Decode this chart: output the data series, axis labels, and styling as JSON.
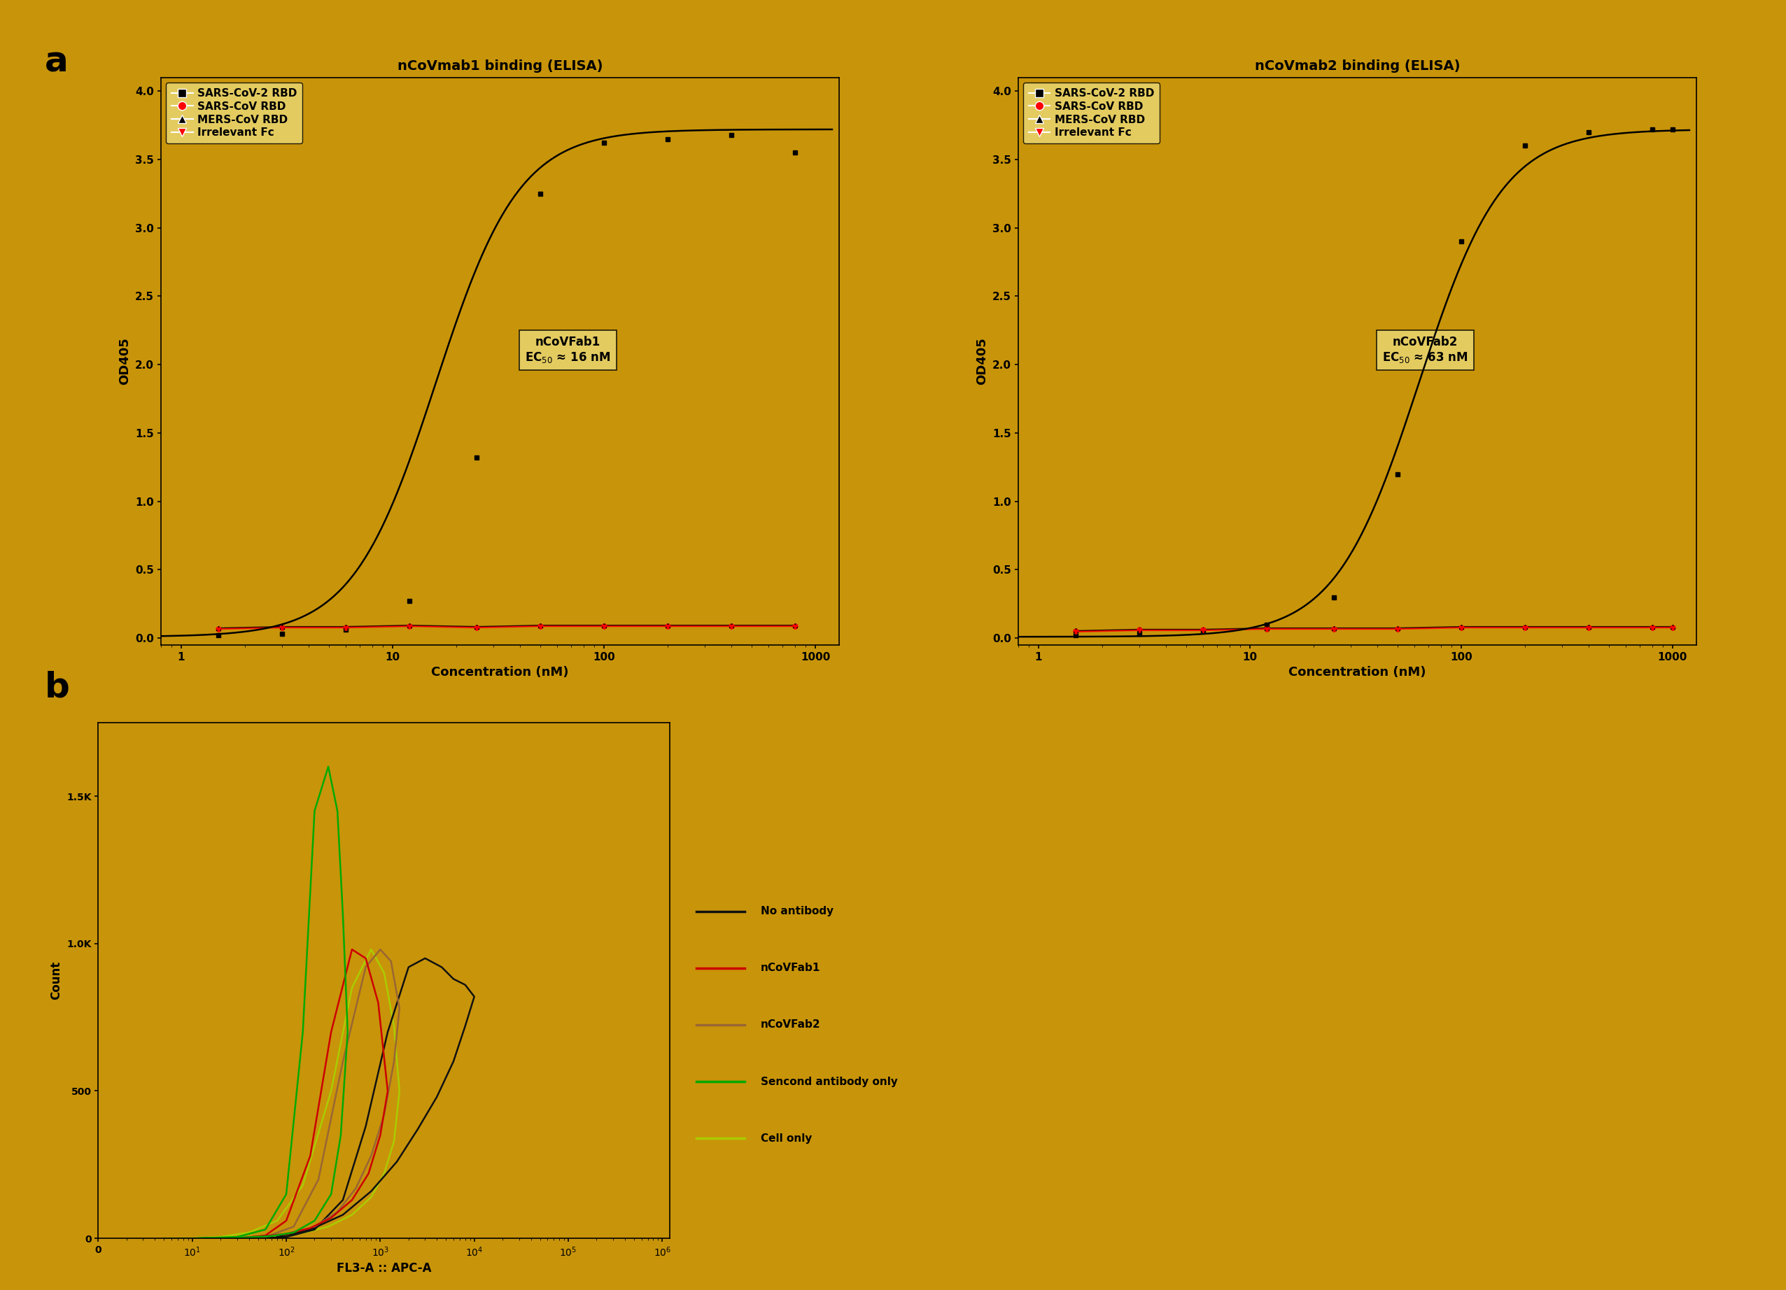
{
  "background_color": "#c8940a",
  "title1": "nCoVmab1 binding (ELISA)",
  "title2": "nCoVmab2 binding (ELISA)",
  "ylabel": "OD405",
  "xlabel": "Concentration (nM)",
  "label_a": "a",
  "label_b": "b",
  "ec50_1": 16,
  "ec50_2": 63,
  "ylim": [
    -0.05,
    4.1
  ],
  "yticks": [
    0.0,
    0.5,
    1.0,
    1.5,
    2.0,
    2.5,
    3.0,
    3.5,
    4.0
  ],
  "sars2_x1": [
    1.5,
    3,
    6,
    12,
    25,
    50,
    100,
    200,
    400,
    800
  ],
  "sars2_y1": [
    0.02,
    0.03,
    0.06,
    0.27,
    1.32,
    3.25,
    3.62,
    3.65,
    3.68,
    3.55
  ],
  "flat_x1": [
    1.5,
    3,
    6,
    12,
    25,
    50,
    100,
    200,
    400,
    800
  ],
  "flat_y1_sars": [
    0.07,
    0.08,
    0.08,
    0.09,
    0.08,
    0.09,
    0.09,
    0.09,
    0.09,
    0.09
  ],
  "flat_y1_mers": [
    0.075,
    0.085,
    0.085,
    0.095,
    0.085,
    0.095,
    0.095,
    0.095,
    0.095,
    0.095
  ],
  "flat_y1_irrel": [
    0.065,
    0.075,
    0.075,
    0.085,
    0.075,
    0.085,
    0.085,
    0.085,
    0.085,
    0.085
  ],
  "sars2_x2": [
    1.5,
    3,
    6,
    12,
    25,
    50,
    100,
    200,
    400,
    800,
    1000
  ],
  "sars2_y2": [
    0.02,
    0.03,
    0.05,
    0.1,
    0.3,
    1.2,
    2.9,
    3.6,
    3.7,
    3.72,
    3.72
  ],
  "flat_x2": [
    1.5,
    3,
    6,
    12,
    25,
    50,
    100,
    200,
    400,
    800,
    1000
  ],
  "flat_y2_sars": [
    0.05,
    0.06,
    0.06,
    0.07,
    0.07,
    0.07,
    0.08,
    0.08,
    0.08,
    0.08,
    0.08
  ],
  "flat_y2_mers": [
    0.055,
    0.065,
    0.065,
    0.075,
    0.075,
    0.075,
    0.085,
    0.085,
    0.085,
    0.085,
    0.085
  ],
  "flat_y2_irrel": [
    0.045,
    0.055,
    0.055,
    0.065,
    0.065,
    0.065,
    0.075,
    0.075,
    0.075,
    0.075,
    0.075
  ],
  "legend_labels": [
    "SARS-CoV-2 RBD",
    "SARS-CoV RBD",
    "MERS-CoV RBD",
    "Irrelevant Fc"
  ],
  "flow_legend": [
    "No antibody",
    "nCoVFab1",
    "nCoVFab2",
    "Sencond antibody only",
    "Cell only"
  ],
  "flow_colors": [
    "#111111",
    "#cc0000",
    "#996633",
    "#00aa00",
    "#aacc00"
  ],
  "flow_xlabel": "FL3-A :: APC-A",
  "flow_ylabel": "Count",
  "flow_yticks": [
    "0",
    "500",
    "1.0K",
    "1.5K"
  ],
  "flow_ytick_vals": [
    0,
    500,
    1000,
    1500
  ]
}
